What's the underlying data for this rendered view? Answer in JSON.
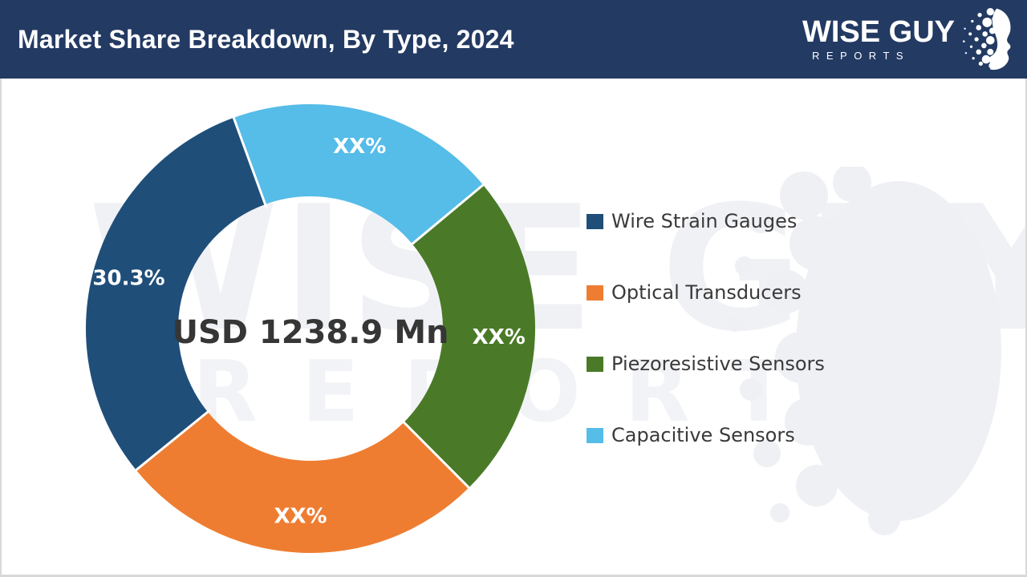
{
  "header": {
    "title": "Market Share Breakdown, By Type, 2024",
    "logo": {
      "wordmark": "WISE GUY",
      "subtitle": "REPORTS"
    }
  },
  "watermark": {
    "wordmark": "WISE GUY",
    "subtitle": "REPORTS"
  },
  "chart_data": {
    "type": "donut",
    "title": "Market Share Breakdown, By Type, 2024",
    "center_label": "USD 1238.9 Mn",
    "start_angle_deg": 110,
    "direction": "counterclockwise",
    "legend_position": "right",
    "segments": [
      {
        "label": "Wire Strain Gauges",
        "display_value": "30.3%",
        "value_pct": 30.3,
        "color": "#1F4E79"
      },
      {
        "label": "Optical Transducers",
        "display_value": "XX%",
        "value_pct": 26.6,
        "color": "#EE7D31"
      },
      {
        "label": "Piezoresistive Sensors",
        "display_value": "XX%",
        "value_pct": 23.6,
        "color": "#4A7A28"
      },
      {
        "label": "Capacitive Sensors",
        "display_value": "XX%",
        "value_pct": 19.5,
        "color": "#56BCE8"
      }
    ],
    "colors": {
      "header_navy": "#233A63",
      "center_text": "#363636",
      "legend_text": "#3A3A3A",
      "segment_gap": "#FFFFFF",
      "watermark": "#F0F1F4"
    }
  }
}
